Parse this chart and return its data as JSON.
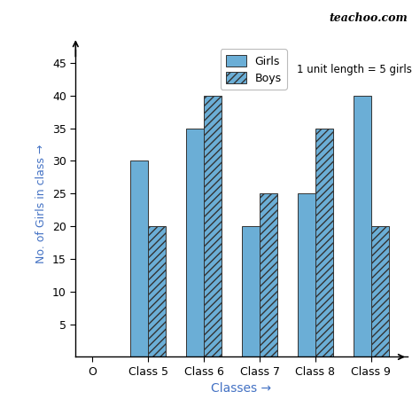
{
  "categories": [
    "Class 5",
    "Class 6",
    "Class 7",
    "Class 8",
    "Class 9"
  ],
  "girls": [
    30,
    35,
    20,
    25,
    40
  ],
  "boys": [
    20,
    40,
    25,
    35,
    20
  ],
  "bar_color_girls": "#6baed6",
  "bar_color_boys": "#6baed6",
  "hatch_boys": "////",
  "xlabel": "Classes →",
  "ylabel": "No. of Girls in class →",
  "ylim": [
    0,
    47
  ],
  "yticks": [
    5,
    10,
    15,
    20,
    25,
    30,
    35,
    40,
    45
  ],
  "legend_girls": "Girls",
  "legend_boys": "Boys",
  "annotation": "1 unit length = 5 girls",
  "watermark": "teachoo.com",
  "bar_width": 0.32,
  "ylabel_color": "#4472c4",
  "xlabel_color": "#4472c4",
  "background_color": "#ffffff",
  "origin_label": "O"
}
